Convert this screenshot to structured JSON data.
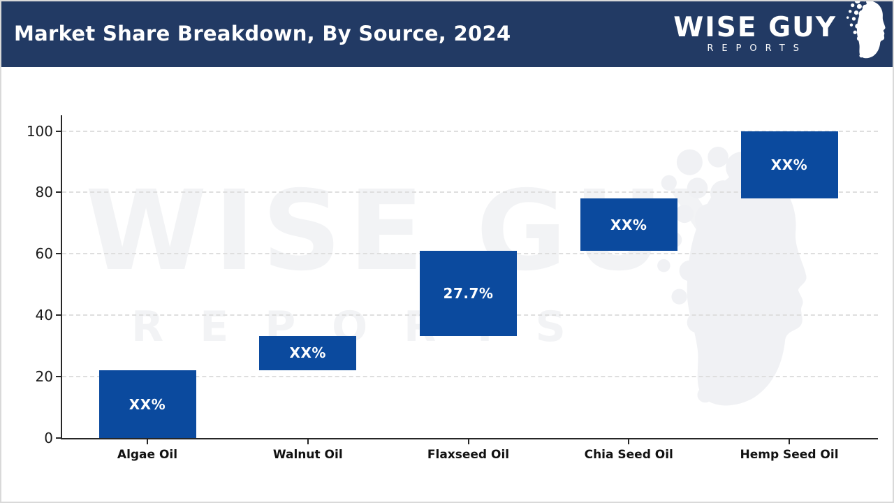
{
  "header": {
    "title": "Market Share Breakdown, By Source, 2024",
    "bg_color": "#223a64",
    "logo": {
      "line1": "WISE GUY",
      "line2": "REPORTS"
    }
  },
  "watermark": {
    "line1": "WISE GUY",
    "line2": "REPORTS"
  },
  "chart_data": {
    "type": "bar",
    "subtype": "waterfall",
    "title": "Market Share Breakdown, By Source, 2024",
    "categories": [
      "Algae Oil",
      "Walnut Oil",
      "Flaxseed Oil",
      "Chia Seed Oil",
      "Hemp Seed Oil"
    ],
    "segments": [
      {
        "category": "Algae Oil",
        "start": 0,
        "end": 22,
        "label": "XX%"
      },
      {
        "category": "Walnut Oil",
        "start": 22,
        "end": 33.3,
        "label": "XX%"
      },
      {
        "category": "Flaxseed Oil",
        "start": 33.3,
        "end": 61,
        "label": "27.7%"
      },
      {
        "category": "Chia Seed Oil",
        "start": 61,
        "end": 78,
        "label": "XX%"
      },
      {
        "category": "Hemp Seed Oil",
        "start": 78,
        "end": 100,
        "label": "XX%"
      }
    ],
    "y_ticks": [
      0,
      20,
      40,
      60,
      80,
      100
    ],
    "ylim": [
      0,
      105
    ],
    "xlabel": "",
    "ylabel": "",
    "bar_color": "#0b4a9e",
    "grid": "horizontal-dashed",
    "legend": "none",
    "axis_color": "#262626",
    "gridline_color": "#dedede"
  }
}
